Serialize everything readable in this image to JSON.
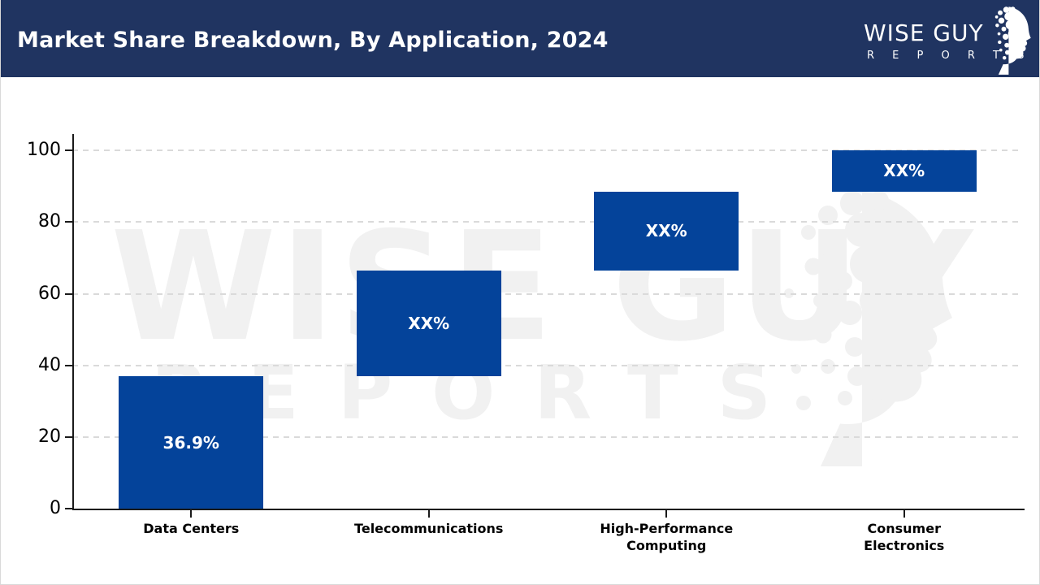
{
  "header": {
    "title": "Market Share Breakdown, By Application, 2024",
    "bg_color": "#203461",
    "logo": {
      "wordmark": "WISE GUY",
      "subtext": "R E P O R T S"
    }
  },
  "watermark": {
    "line1": "WISE GUY",
    "line2": "REPORTS"
  },
  "chart_data": {
    "type": "bar",
    "subtype": "waterfall-stacked",
    "title": "Market Share Breakdown, By Application, 2024",
    "categories": [
      "Data Centers",
      "Telecommunications",
      "High-Performance Computing",
      "Consumer Electronics"
    ],
    "category_tick_labels": [
      "Data Centers",
      "Telecommunications",
      "High-Performance\nComputing",
      "Consumer\nElectronics"
    ],
    "series": [
      {
        "name": "Market Share (%)",
        "values": [
          36.9,
          29.5,
          22.2,
          11.4
        ]
      }
    ],
    "bar_segments": [
      [
        0,
        36.9
      ],
      [
        36.9,
        66.4
      ],
      [
        66.4,
        88.6
      ],
      [
        88.6,
        100
      ]
    ],
    "bar_value_labels": [
      "36.9%",
      "XX%",
      "XX%",
      "XX%"
    ],
    "yticks": [
      0,
      20,
      40,
      60,
      80,
      100
    ],
    "ytick_labels": [
      "0",
      "20",
      "40",
      "60",
      "80",
      "100"
    ],
    "ylim": [
      0,
      105
    ],
    "xlabel": "",
    "ylabel": "",
    "grid": "horizontal-dashed",
    "legend": "none",
    "bar_color": "#04439a",
    "bar_label_color": "#ffffff",
    "axis_color": "#1a1a1a",
    "grid_color": "#dadada"
  }
}
